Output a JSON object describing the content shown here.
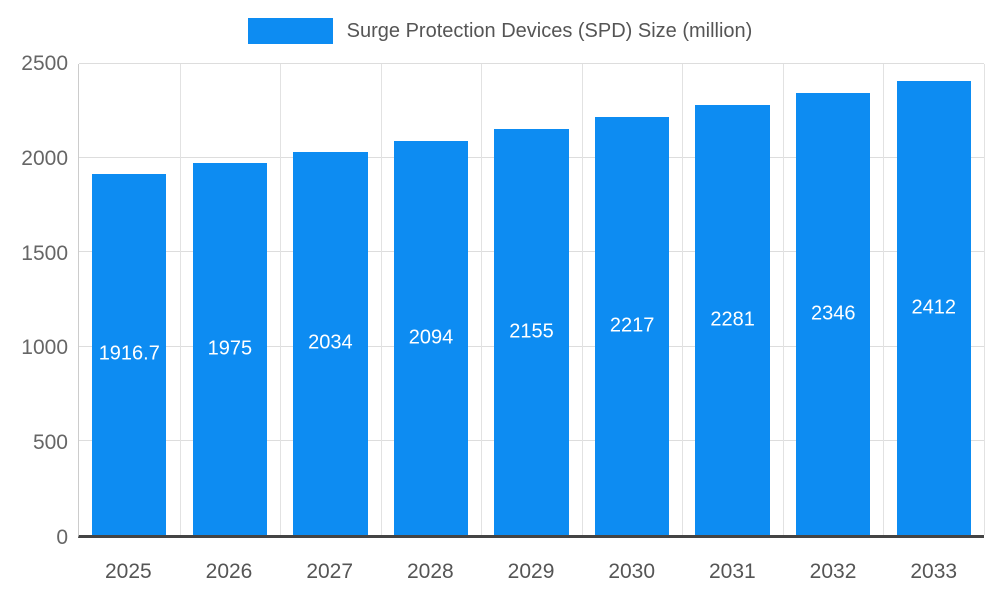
{
  "legend": {
    "label": "Surge Protection Devices (SPD) Size (million)"
  },
  "chart_data": {
    "type": "bar",
    "title": "Surge Protection Devices (SPD) Size (million)",
    "categories": [
      "2025",
      "2026",
      "2027",
      "2028",
      "2029",
      "2030",
      "2031",
      "2032",
      "2033"
    ],
    "values": [
      1916.7,
      1975,
      2034,
      2094,
      2155,
      2217,
      2281,
      2346,
      2412
    ],
    "labels": [
      "1916.7",
      "1975",
      "2034",
      "2094",
      "2155",
      "2217",
      "2281",
      "2346",
      "2412"
    ],
    "xlabel": "",
    "ylabel": "",
    "ylim": [
      0,
      2500
    ],
    "yticks": [
      0,
      500,
      1000,
      1500,
      2000,
      2500
    ],
    "grid": true,
    "legend_position": "top",
    "bar_color": "#0d8cf2",
    "label_color": "#ffffff",
    "axis_text_color": "#666666",
    "gridline_color": "#dddddd"
  }
}
